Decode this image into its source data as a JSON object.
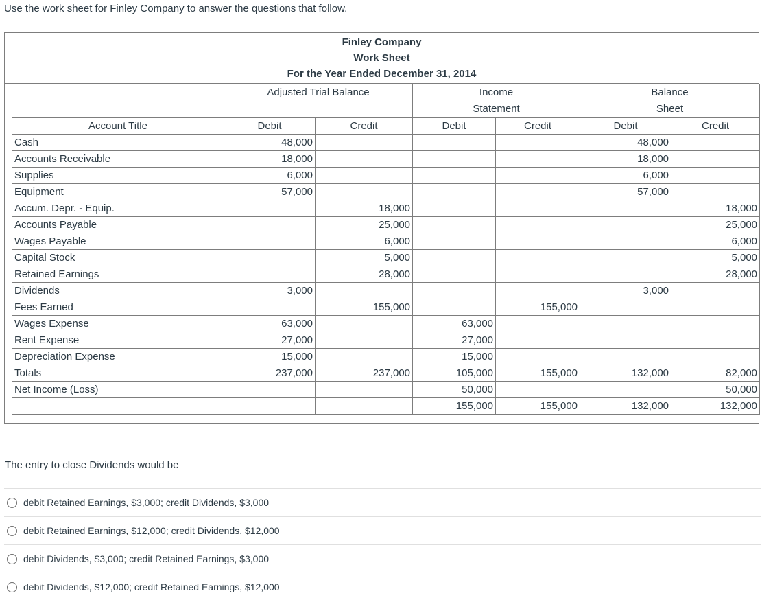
{
  "intro": "Use the work sheet for Finley Company to answer the questions that follow.",
  "colors": {
    "text": "#2D3B45",
    "table_border": "#7d7d7d",
    "option_divider": "#e0e0e0"
  },
  "worksheet": {
    "title_lines": [
      "Finley Company",
      "Work Sheet",
      "For the Year Ended December 31, 2014"
    ],
    "column_groups": [
      {
        "line1": "Adjusted Trial Balance",
        "line2": ""
      },
      {
        "line1": "Income",
        "line2": "Statement"
      },
      {
        "line1": "Balance",
        "line2": "Sheet"
      }
    ],
    "account_title_header": "Account Title",
    "debit_label": "Debit",
    "credit_label": "Credit",
    "rows": [
      {
        "account": "Cash",
        "atb_debit": "48,000",
        "atb_credit": "",
        "is_debit": "",
        "is_credit": "",
        "bs_debit": "48,000",
        "bs_credit": ""
      },
      {
        "account": "Accounts Receivable",
        "atb_debit": "18,000",
        "atb_credit": "",
        "is_debit": "",
        "is_credit": "",
        "bs_debit": "18,000",
        "bs_credit": ""
      },
      {
        "account": "Supplies",
        "atb_debit": "6,000",
        "atb_credit": "",
        "is_debit": "",
        "is_credit": "",
        "bs_debit": "6,000",
        "bs_credit": ""
      },
      {
        "account": "Equipment",
        "atb_debit": "57,000",
        "atb_credit": "",
        "is_debit": "",
        "is_credit": "",
        "bs_debit": "57,000",
        "bs_credit": ""
      },
      {
        "account": "Accum. Depr. - Equip.",
        "atb_debit": "",
        "atb_credit": "18,000",
        "is_debit": "",
        "is_credit": "",
        "bs_debit": "",
        "bs_credit": "18,000"
      },
      {
        "account": "Accounts Payable",
        "atb_debit": "",
        "atb_credit": "25,000",
        "is_debit": "",
        "is_credit": "",
        "bs_debit": "",
        "bs_credit": "25,000"
      },
      {
        "account": "Wages Payable",
        "atb_debit": "",
        "atb_credit": "6,000",
        "is_debit": "",
        "is_credit": "",
        "bs_debit": "",
        "bs_credit": "6,000"
      },
      {
        "account": "Capital Stock",
        "atb_debit": "",
        "atb_credit": "5,000",
        "is_debit": "",
        "is_credit": "",
        "bs_debit": "",
        "bs_credit": "5,000"
      },
      {
        "account": "Retained Earnings",
        "atb_debit": "",
        "atb_credit": "28,000",
        "is_debit": "",
        "is_credit": "",
        "bs_debit": "",
        "bs_credit": "28,000"
      },
      {
        "account": "Dividends",
        "atb_debit": "3,000",
        "atb_credit": "",
        "is_debit": "",
        "is_credit": "",
        "bs_debit": "3,000",
        "bs_credit": ""
      },
      {
        "account": "Fees Earned",
        "atb_debit": "",
        "atb_credit": "155,000",
        "is_debit": "",
        "is_credit": "155,000",
        "bs_debit": "",
        "bs_credit": ""
      },
      {
        "account": "Wages Expense",
        "atb_debit": "63,000",
        "atb_credit": "",
        "is_debit": "63,000",
        "is_credit": "",
        "bs_debit": "",
        "bs_credit": ""
      },
      {
        "account": "Rent Expense",
        "atb_debit": "27,000",
        "atb_credit": "",
        "is_debit": "27,000",
        "is_credit": "",
        "bs_debit": "",
        "bs_credit": ""
      },
      {
        "account": "Depreciation Expense",
        "atb_debit": "15,000",
        "atb_credit": "",
        "is_debit": "15,000",
        "is_credit": "",
        "bs_debit": "",
        "bs_credit": ""
      },
      {
        "account": "Totals",
        "atb_debit": "237,000",
        "atb_credit": "237,000",
        "is_debit": "105,000",
        "is_credit": "155,000",
        "bs_debit": "132,000",
        "bs_credit": "82,000"
      },
      {
        "account": "Net Income (Loss)",
        "atb_debit": "",
        "atb_credit": "",
        "is_debit": "50,000",
        "is_credit": "",
        "bs_debit": "",
        "bs_credit": "50,000"
      },
      {
        "account": "",
        "atb_debit": "",
        "atb_credit": "",
        "is_debit": "155,000",
        "is_credit": "155,000",
        "bs_debit": "132,000",
        "bs_credit": "132,000"
      }
    ]
  },
  "question": {
    "prompt": "The entry to close Dividends would be",
    "options": [
      "debit Retained Earnings, $3,000; credit Dividends, $3,000",
      "debit Retained Earnings, $12,000; credit Dividends, $12,000",
      "debit Dividends, $3,000; credit Retained Earnings, $3,000",
      "debit Dividends, $12,000; credit Retained Earnings, $12,000"
    ]
  }
}
